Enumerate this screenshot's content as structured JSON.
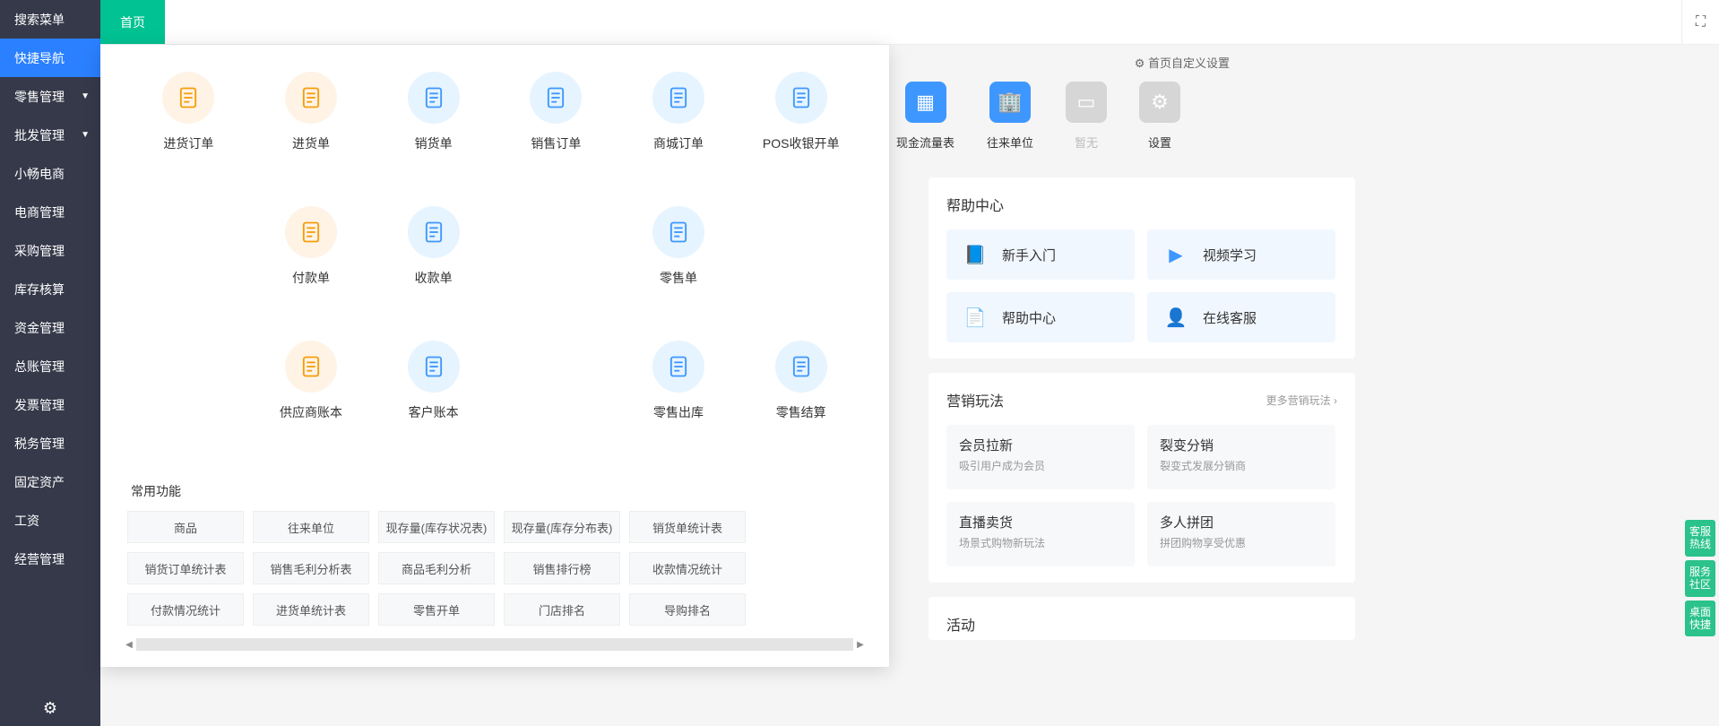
{
  "sidebar": {
    "items": [
      {
        "label": "搜索菜单",
        "active": false,
        "expandable": false
      },
      {
        "label": "快捷导航",
        "active": true,
        "expandable": false
      },
      {
        "label": "零售管理",
        "active": false,
        "expandable": true
      },
      {
        "label": "批发管理",
        "active": false,
        "expandable": true
      },
      {
        "label": "小畅电商",
        "active": false,
        "expandable": false
      },
      {
        "label": "电商管理",
        "active": false,
        "expandable": false
      },
      {
        "label": "采购管理",
        "active": false,
        "expandable": false
      },
      {
        "label": "库存核算",
        "active": false,
        "expandable": false
      },
      {
        "label": "资金管理",
        "active": false,
        "expandable": false
      },
      {
        "label": "总账管理",
        "active": false,
        "expandable": false
      },
      {
        "label": "发票管理",
        "active": false,
        "expandable": false
      },
      {
        "label": "税务管理",
        "active": false,
        "expandable": false
      },
      {
        "label": "固定资产",
        "active": false,
        "expandable": false
      },
      {
        "label": "工资",
        "active": false,
        "expandable": false
      },
      {
        "label": "经营管理",
        "active": false,
        "expandable": false
      }
    ]
  },
  "tabbar": {
    "tab1": "首页"
  },
  "flyout": {
    "flow": {
      "row1": [
        {
          "key": "purchase-order",
          "label": "进货订单",
          "style": "orange"
        },
        {
          "key": "purchase-receipt",
          "label": "进货单",
          "style": "orange"
        },
        {
          "key": "sales-invoice",
          "label": "销货单",
          "style": "blue"
        },
        {
          "key": "sales-order",
          "label": "销售订单",
          "style": "blue"
        },
        {
          "key": "mall-order",
          "label": "商城订单",
          "style": "blue"
        },
        {
          "key": "pos-open",
          "label": "POS收银开单",
          "style": "blue"
        }
      ],
      "row2": [
        {
          "key": "payment-slip",
          "label": "付款单",
          "style": "orange",
          "col": 1
        },
        {
          "key": "receipt-slip",
          "label": "收款单",
          "style": "blue",
          "col": 2
        },
        {
          "key": "retail-slip",
          "label": "零售单",
          "style": "blue",
          "col": 4
        }
      ],
      "row3": [
        {
          "key": "supplier-ledger",
          "label": "供应商账本",
          "style": "orange",
          "col": 1
        },
        {
          "key": "customer-ledger",
          "label": "客户账本",
          "style": "blue",
          "col": 2
        },
        {
          "key": "retail-outbound",
          "label": "零售出库",
          "style": "blue",
          "col": 4
        },
        {
          "key": "retail-settle",
          "label": "零售结算",
          "style": "blue",
          "col": 5
        }
      ]
    },
    "common_title": "常用功能",
    "common": [
      "商品",
      "往来单位",
      "现存量(库存状况表)",
      "现存量(库存分布表)",
      "销货单统计表",
      "销货订单统计表",
      "销售毛利分析表",
      "商品毛利分析",
      "销售排行榜",
      "收款情况统计",
      "付款情况统计",
      "进货单统计表",
      "零售开单",
      "门店排名",
      "导购排名"
    ]
  },
  "right": {
    "settings_link": "首页自定义设置",
    "tiles": [
      {
        "key": "cash-flow",
        "label": "现金流量表",
        "style": "blue"
      },
      {
        "key": "contacts",
        "label": "往来单位",
        "style": "blue"
      },
      {
        "key": "none",
        "label": "暂无",
        "style": "grey",
        "muted": true
      },
      {
        "key": "settings",
        "label": "设置",
        "style": "grey"
      }
    ],
    "help": {
      "title": "帮助中心",
      "items": [
        {
          "key": "beginner",
          "label": "新手入门"
        },
        {
          "key": "video",
          "label": "视频学习"
        },
        {
          "key": "help-center",
          "label": "帮助中心"
        },
        {
          "key": "online-cs",
          "label": "在线客服"
        }
      ]
    },
    "marketing": {
      "title": "营销玩法",
      "more": "更多营销玩法",
      "items": [
        {
          "title": "会员拉新",
          "sub": "吸引用户成为会员"
        },
        {
          "title": "裂变分销",
          "sub": "裂变式发展分销商"
        },
        {
          "title": "直播卖货",
          "sub": "场景式购物新玩法"
        },
        {
          "title": "多人拼团",
          "sub": "拼团购物享受优惠"
        }
      ]
    },
    "activity_title": "活动"
  },
  "float": [
    "客服热线",
    "服务社区",
    "桌面快捷"
  ],
  "colors": {
    "sidebar_bg": "#36394a",
    "active_bg": "#2a80ff",
    "tab_bg": "#00c292",
    "orange_fill": "#fff3e6",
    "orange_stroke": "#f59e0b",
    "blue_fill": "#e6f4ff",
    "blue_stroke": "#3e97ff",
    "float_bg": "#2bc28c"
  }
}
